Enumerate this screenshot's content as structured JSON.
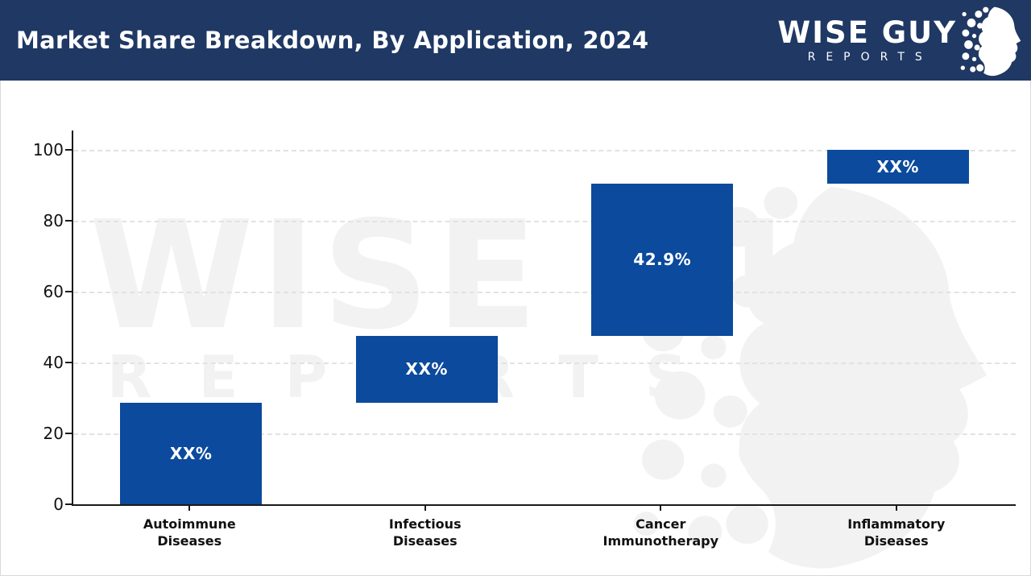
{
  "header": {
    "title": "Market Share Breakdown, By Application, 2024",
    "logo": {
      "line1": "WISE GUY",
      "line2": "REPORTS"
    }
  },
  "watermark": {
    "line1": "WISE GU",
    "line2": "REPORTS"
  },
  "colors": {
    "header_bg": "#1f3864",
    "bar": "#0b4a9c",
    "bar_label_text": "#ffffff",
    "axis": "#1a1a1a",
    "grid": "#e2e2e2",
    "tick_text": "#111111",
    "watermark": "#f2f2f2",
    "card_border": "#d9d9d9"
  },
  "chart_data": {
    "type": "bar",
    "subtype": "floating-waterfall",
    "title": "Market Share Breakdown, By Application, 2024",
    "xlabel": "",
    "ylabel": "",
    "ylim": [
      0,
      105
    ],
    "yticks": [
      0,
      20,
      40,
      60,
      80,
      100
    ],
    "grid": "horizontal-dashed",
    "legend": "none",
    "segments": [
      {
        "line1": "Autoimmune",
        "line2": "Diseases",
        "start": 0,
        "end": 28.6,
        "value": 28.6,
        "label": "XX%"
      },
      {
        "line1": "Infectious",
        "line2": "Diseases",
        "start": 28.6,
        "end": 47.6,
        "value": 19.0,
        "label": "XX%"
      },
      {
        "line1": "Cancer",
        "line2": "Immunotherapy",
        "start": 47.6,
        "end": 90.5,
        "value": 42.9,
        "label": "42.9%"
      },
      {
        "line1": "Inflammatory",
        "line2": "Diseases",
        "start": 90.5,
        "end": 100,
        "value": 9.5,
        "label": "XX%"
      }
    ]
  }
}
